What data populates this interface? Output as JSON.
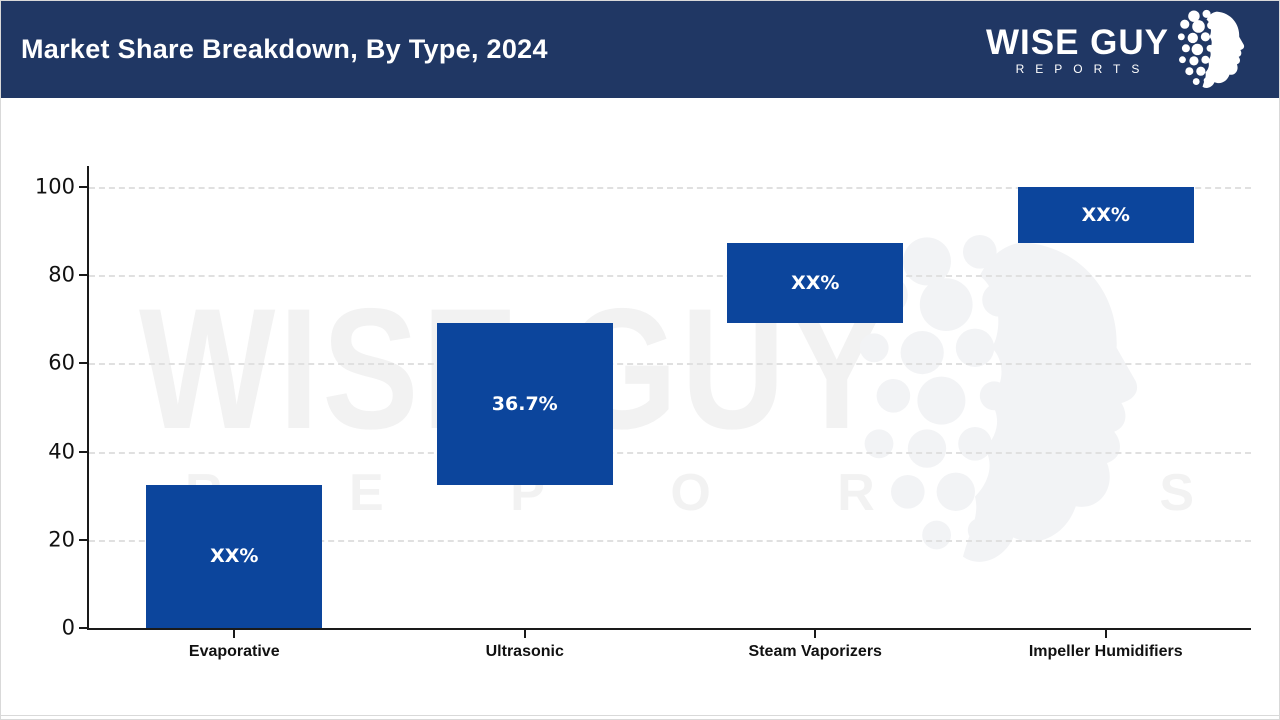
{
  "header": {
    "title": "Market Share Breakdown, By Type, 2024",
    "logo": {
      "line1": "WISE GUY",
      "line2": "REPORTS"
    }
  },
  "watermark": {
    "line1": "WISE GUY",
    "line2": "R E P O R T S"
  },
  "chart_data": {
    "type": "bar",
    "subtype": "waterfall",
    "title": "Market Share Breakdown, By Type, 2024",
    "categories": [
      "Evaporative",
      "Ultrasonic",
      "Steam Vaporizers",
      "Impeller Humidifiers"
    ],
    "segments": [
      {
        "category": "Evaporative",
        "start": 0,
        "end": 32.5,
        "label": "XX%"
      },
      {
        "category": "Ultrasonic",
        "start": 32.5,
        "end": 69.2,
        "label": "36.7%"
      },
      {
        "category": "Steam Vaporizers",
        "start": 69.2,
        "end": 87.4,
        "label": "XX%"
      },
      {
        "category": "Impeller Humidifiers",
        "start": 87.4,
        "end": 100,
        "label": "XX%"
      }
    ],
    "y_ticks": [
      0,
      20,
      40,
      60,
      80,
      100
    ],
    "ylim": [
      0,
      100
    ],
    "xlabel": "",
    "ylabel": "",
    "grid": "horizontal-dashed",
    "legend": "none",
    "colors": {
      "bar": "#0c459c",
      "bar_label": "#ffffff",
      "header_bg": "#203764",
      "axis": "#1a1a1a",
      "grid": "#e0e0e0",
      "watermark": "#f2f2f2"
    }
  }
}
